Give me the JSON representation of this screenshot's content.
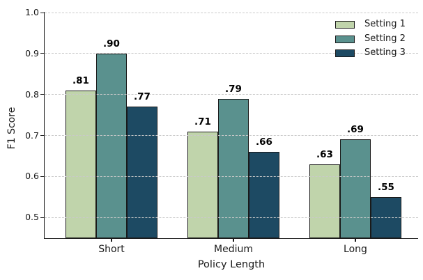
{
  "chart_data": {
    "type": "bar",
    "title": "",
    "xlabel": "Policy Length",
    "ylabel": "F1 Score",
    "categories": [
      "Short",
      "Medium",
      "Long"
    ],
    "series": [
      {
        "name": "Setting 1",
        "color": "#c0d4ab",
        "values": [
          0.81,
          0.71,
          0.63
        ],
        "bar_labels": [
          ".81",
          ".71",
          ".63"
        ]
      },
      {
        "name": "Setting 2",
        "color": "#5a918e",
        "values": [
          0.9,
          0.79,
          0.69
        ],
        "bar_labels": [
          ".90",
          ".79",
          ".69"
        ]
      },
      {
        "name": "Setting 3",
        "color": "#1d4a63",
        "values": [
          0.77,
          0.66,
          0.55
        ],
        "bar_labels": [
          ".77",
          ".66",
          ".55"
        ]
      }
    ],
    "yticks": [
      "0.5",
      "0.6",
      "0.7",
      "0.8",
      "0.9",
      "1.0"
    ],
    "ylim": [
      0.45,
      1.0
    ],
    "grid": "horizontal-dashed",
    "legend_position": "upper-right",
    "bar_edge_color": "#1a1a1a",
    "gridline_color": "#c9c9c9",
    "background_color": "#ffffff"
  }
}
